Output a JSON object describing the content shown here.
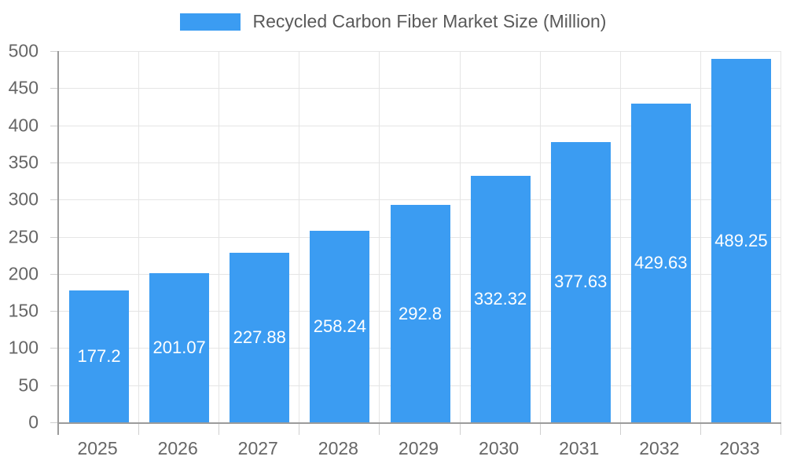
{
  "legend": {
    "label": "Recycled Carbon Fiber Market Size (Million)"
  },
  "chart_data": {
    "type": "bar",
    "title": "Recycled Carbon Fiber Market Size (Million)",
    "series_name": "Recycled Carbon Fiber Market Size (Million)",
    "categories": [
      "2025",
      "2026",
      "2027",
      "2028",
      "2029",
      "2030",
      "2031",
      "2032",
      "2033"
    ],
    "values": [
      177.2,
      201.07,
      227.88,
      258.24,
      292.8,
      332.32,
      377.63,
      429.63,
      489.25
    ],
    "value_labels": [
      "177.2",
      "201.07",
      "227.88",
      "258.24",
      "292.8",
      "332.32",
      "377.63",
      "429.63",
      "489.25"
    ],
    "xlabel": "",
    "ylabel": "",
    "ylim": [
      0,
      500
    ],
    "yticks": [
      0,
      50,
      100,
      150,
      200,
      250,
      300,
      350,
      400,
      450,
      500
    ],
    "grid": true,
    "legend_position": "top",
    "value_label_position": "inside-center",
    "colors": {
      "bar": "#3B9CF2",
      "value_label": "#FFFFFF",
      "axis_text": "#666666",
      "legend_text": "#5A5A5A",
      "gridline": "#E5E5E5",
      "axis_line": "#9B9B9B",
      "tick": "#CFCFCF",
      "background": "#FFFFFF"
    }
  }
}
